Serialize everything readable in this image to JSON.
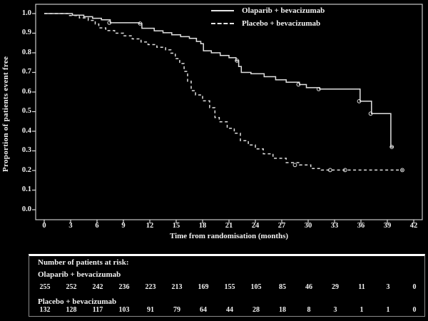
{
  "chart_data": {
    "type": "line",
    "subtype": "kaplan-meier-step",
    "title": "",
    "xlabel": "Time from randomisation (months)",
    "ylabel": "Proportion of patients event free",
    "xlim": [
      0,
      42
    ],
    "ylim": [
      0.0,
      1.0
    ],
    "xticks": [
      "0",
      "3",
      "6",
      "9",
      "12",
      "15",
      "18",
      "21",
      "24",
      "27",
      "30",
      "33",
      "36",
      "39",
      "42"
    ],
    "yticks": [
      "1.0",
      "0.9",
      "0.8",
      "0.7",
      "0.6",
      "0.5",
      "0.4",
      "0.3",
      "0.2",
      "0.1",
      "0.0"
    ],
    "grid": false,
    "legend_position": "top-right-inside",
    "line_color": "#e0e0e0",
    "series": [
      {
        "name": "Olaparib + bevacizumab",
        "style": "solid",
        "points": [
          [
            0,
            1.0
          ],
          [
            2.8,
            1.0
          ],
          [
            3.2,
            0.992
          ],
          [
            4.5,
            0.984
          ],
          [
            5.5,
            0.976
          ],
          [
            6.5,
            0.968
          ],
          [
            7.5,
            0.953
          ],
          [
            10.8,
            0.949
          ],
          [
            11.1,
            0.925
          ],
          [
            12.5,
            0.912
          ],
          [
            13.5,
            0.902
          ],
          [
            14.5,
            0.892
          ],
          [
            15.5,
            0.882
          ],
          [
            16.5,
            0.874
          ],
          [
            17.3,
            0.858
          ],
          [
            17.8,
            0.846
          ],
          [
            18.1,
            0.81
          ],
          [
            19.0,
            0.8
          ],
          [
            20.0,
            0.786
          ],
          [
            21.0,
            0.775
          ],
          [
            21.8,
            0.76
          ],
          [
            22.1,
            0.73
          ],
          [
            22.4,
            0.7
          ],
          [
            23.5,
            0.693
          ],
          [
            25.0,
            0.678
          ],
          [
            26.3,
            0.662
          ],
          [
            27.5,
            0.65
          ],
          [
            29.0,
            0.638
          ],
          [
            29.8,
            0.622
          ],
          [
            31.3,
            0.615
          ],
          [
            35.9,
            0.553
          ],
          [
            37.2,
            0.49
          ],
          [
            39.4,
            0.32
          ],
          [
            39.7,
            0.32
          ]
        ],
        "censor_marks": [
          [
            7.4,
            0.953
          ],
          [
            10.9,
            0.949
          ],
          [
            21.9,
            0.76
          ],
          [
            28.9,
            0.638
          ],
          [
            31.2,
            0.615
          ],
          [
            35.8,
            0.553
          ],
          [
            37.1,
            0.49
          ],
          [
            39.5,
            0.32
          ]
        ]
      },
      {
        "name": "Placebo + bevacizumab",
        "style": "dashed",
        "points": [
          [
            0,
            1.0
          ],
          [
            2.3,
            1.0
          ],
          [
            2.8,
            0.99
          ],
          [
            4.0,
            0.978
          ],
          [
            5.0,
            0.965
          ],
          [
            5.8,
            0.947
          ],
          [
            6.2,
            0.927
          ],
          [
            7.0,
            0.913
          ],
          [
            8.0,
            0.9
          ],
          [
            9.0,
            0.886
          ],
          [
            10.0,
            0.871
          ],
          [
            11.0,
            0.855
          ],
          [
            11.8,
            0.842
          ],
          [
            12.8,
            0.828
          ],
          [
            13.8,
            0.815
          ],
          [
            14.4,
            0.798
          ],
          [
            14.9,
            0.77
          ],
          [
            15.4,
            0.745
          ],
          [
            15.9,
            0.705
          ],
          [
            16.3,
            0.655
          ],
          [
            16.7,
            0.607
          ],
          [
            17.2,
            0.585
          ],
          [
            18.0,
            0.555
          ],
          [
            18.8,
            0.52
          ],
          [
            19.4,
            0.47
          ],
          [
            19.9,
            0.448
          ],
          [
            20.8,
            0.415
          ],
          [
            21.6,
            0.39
          ],
          [
            22.3,
            0.352
          ],
          [
            23.2,
            0.33
          ],
          [
            24.0,
            0.31
          ],
          [
            24.9,
            0.285
          ],
          [
            26.0,
            0.262
          ],
          [
            27.5,
            0.24
          ],
          [
            29.0,
            0.228
          ],
          [
            30.3,
            0.21
          ],
          [
            31.5,
            0.202
          ],
          [
            40.8,
            0.202
          ]
        ],
        "censor_marks": [
          [
            28.5,
            0.228
          ],
          [
            32.5,
            0.202
          ],
          [
            34.2,
            0.202
          ],
          [
            40.7,
            0.202
          ]
        ]
      }
    ]
  },
  "risk_table": {
    "title": "Number of patients at risk:",
    "rows": [
      {
        "label": "Olaparib + bevacizumab",
        "counts": [
          "255",
          "252",
          "242",
          "236",
          "223",
          "213",
          "169",
          "155",
          "105",
          "85",
          "46",
          "29",
          "11",
          "3",
          "0"
        ]
      },
      {
        "label": "Placebo + bevacizumab",
        "counts": [
          "132",
          "128",
          "117",
          "103",
          "91",
          "79",
          "64",
          "44",
          "28",
          "18",
          "8",
          "3",
          "1",
          "1",
          "0"
        ]
      }
    ]
  }
}
